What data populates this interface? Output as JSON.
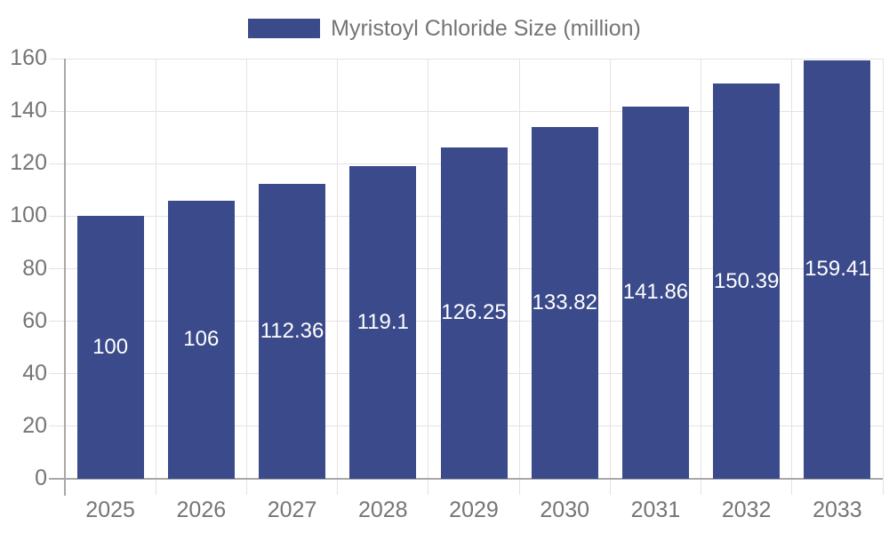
{
  "legend": {
    "label": "Myristoyl Chloride Size (million)",
    "swatch_color": "#3A4A8A"
  },
  "chart_data": {
    "type": "bar",
    "title": "Myristoyl Chloride Size (million)",
    "categories": [
      "2025",
      "2026",
      "2027",
      "2028",
      "2029",
      "2030",
      "2031",
      "2032",
      "2033"
    ],
    "values": [
      100,
      106,
      112.36,
      119.1,
      126.25,
      133.82,
      141.86,
      150.39,
      159.41
    ],
    "value_labels": [
      "100",
      "106",
      "112.36",
      "119.1",
      "126.25",
      "133.82",
      "141.86",
      "150.39",
      "159.41"
    ],
    "xlabel": "",
    "ylabel": "",
    "ylim": [
      0,
      160
    ],
    "y_ticks": [
      0,
      20,
      40,
      60,
      80,
      100,
      120,
      140,
      160
    ],
    "y_tick_labels": [
      "0",
      "20",
      "40",
      "60",
      "80",
      "100",
      "120",
      "140",
      "160"
    ],
    "grid": true,
    "legend_position": "top",
    "colors": {
      "bar": "#3A4A8A",
      "value_label": "#ffffff",
      "axis_label": "#757575",
      "grid_line": "#e3e3e3",
      "axis_line": "#a8a8a8",
      "background": "#ffffff"
    }
  }
}
